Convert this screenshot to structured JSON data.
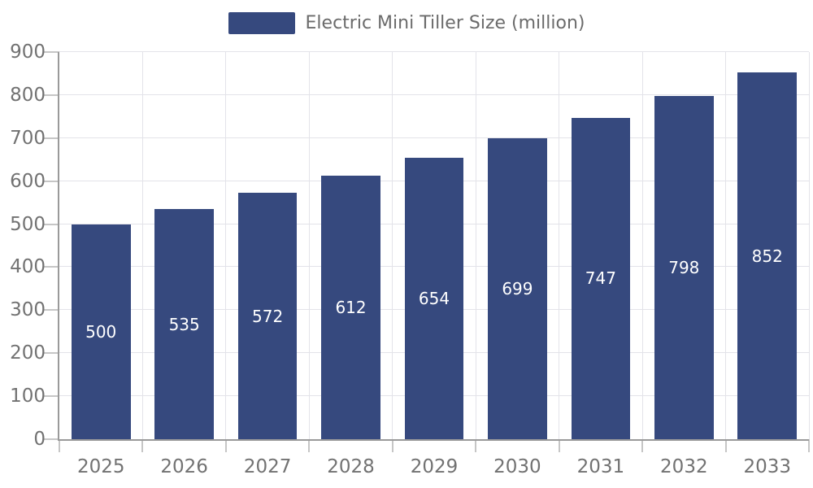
{
  "legend": {
    "label": "Electric Mini Tiller Size (million)"
  },
  "chart_data": {
    "type": "bar",
    "title": "",
    "series_name": "Electric Mini Tiller Size (million)",
    "categories": [
      "2025",
      "2026",
      "2027",
      "2028",
      "2029",
      "2030",
      "2031",
      "2032",
      "2033"
    ],
    "values": [
      500,
      535,
      572,
      612,
      654,
      699,
      747,
      798,
      852
    ],
    "value_labels": [
      "500",
      "535",
      "572",
      "612",
      "654",
      "699",
      "747",
      "798",
      "852"
    ],
    "xlabel": "",
    "ylabel": "",
    "ylim": [
      0,
      900
    ],
    "ytick_step": 100,
    "ytick_labels": [
      "0",
      "100",
      "200",
      "300",
      "400",
      "500",
      "600",
      "700",
      "800",
      "900"
    ],
    "grid": true,
    "legend_position": "top",
    "colors": {
      "bar": "#36497E",
      "value_label": "#FFFFFF",
      "axis_label": "#727272",
      "legend_label": "#6B6B6B",
      "grid_line": "#E3E3E9",
      "axis_line": "#9A9A9A",
      "tick_mark": "#C6C6C6",
      "background": "#FFFFFF"
    }
  }
}
